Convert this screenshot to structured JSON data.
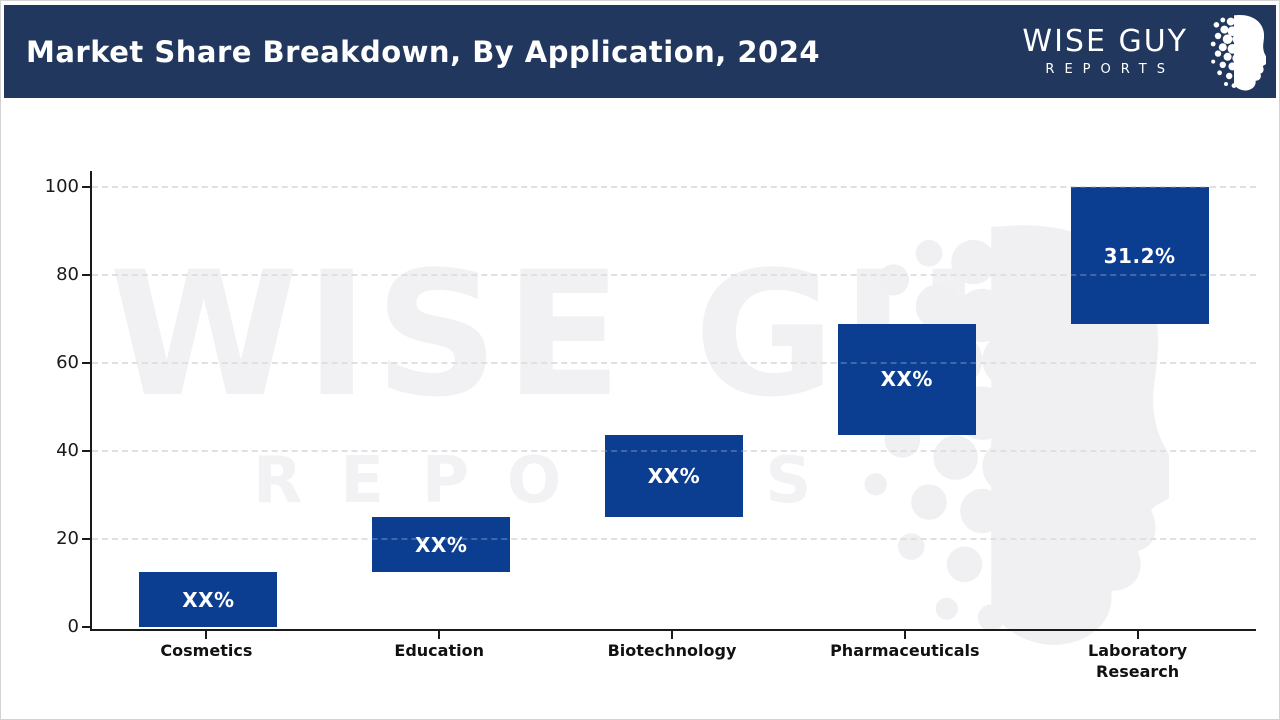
{
  "header": {
    "title": "Market Share Breakdown, By Application, 2024",
    "logo": {
      "line1": "WISE GUY",
      "line2": "REPORTS"
    }
  },
  "watermark": {
    "line1": "WISE GUY",
    "line2": "REPORTS"
  },
  "chart_data": {
    "type": "bar",
    "subtype": "waterfall-floating-bars",
    "title": "Market Share Breakdown, By Application, 2024",
    "categories": [
      "Cosmetics",
      "Education",
      "Biotechnology",
      "Pharmaceuticals",
      "Laboratory Research"
    ],
    "segments": [
      {
        "category": "Cosmetics",
        "start": 0,
        "end": 12.5,
        "label": "XX%"
      },
      {
        "category": "Education",
        "start": 12.5,
        "end": 25,
        "label": "XX%"
      },
      {
        "category": "Biotechnology",
        "start": 25,
        "end": 43.7,
        "label": "XX%"
      },
      {
        "category": "Pharmaceuticals",
        "start": 43.7,
        "end": 68.8,
        "label": "XX%"
      },
      {
        "category": "Laboratory Research",
        "start": 68.8,
        "end": 100,
        "label": "31.2%"
      }
    ],
    "yticks": [
      0,
      20,
      40,
      60,
      80,
      100
    ],
    "ylim": [
      0,
      104
    ],
    "xlabel": "",
    "ylabel": "",
    "grid": "horizontal-dashed",
    "legend": "none",
    "bar_color": "#0b3d91",
    "bar_label_color": "#ffffff"
  },
  "colors": {
    "header_bg": "#21375e",
    "bar": "#0b3d91",
    "grid": "#d8d8d8",
    "axis": "#1a1a1a",
    "watermark": "#f1f1f4",
    "page_border": "#d3d3d3"
  }
}
